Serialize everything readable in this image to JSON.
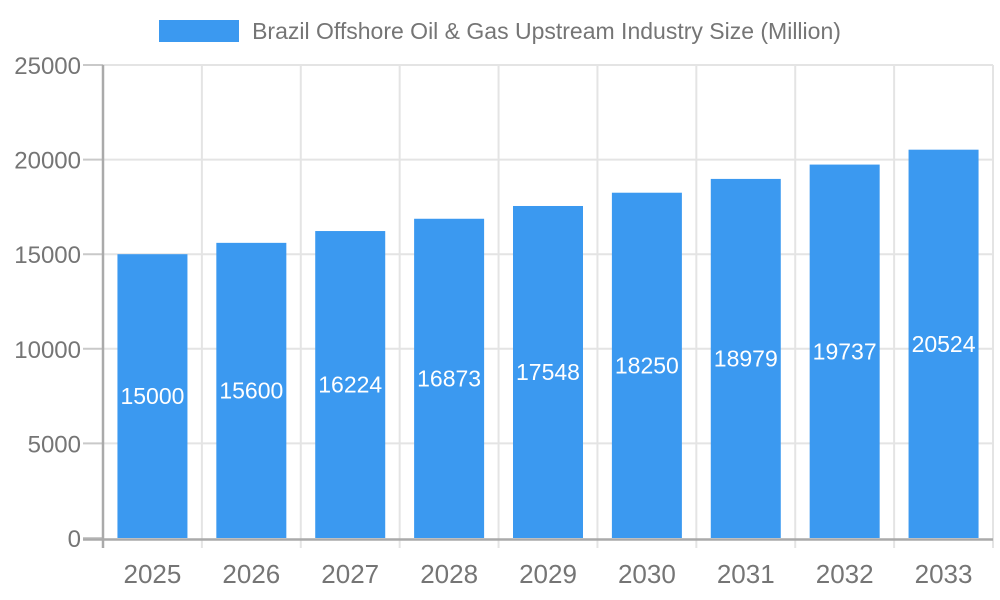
{
  "chart_data": {
    "type": "bar",
    "title": "Brazil Offshore Oil & Gas Upstream Industry Size (Million)",
    "legend_label": "Brazil Offshore Oil & Gas Upstream Industry Size (Million)",
    "legend_position": "top",
    "categories": [
      "2025",
      "2026",
      "2027",
      "2028",
      "2029",
      "2030",
      "2031",
      "2032",
      "2033"
    ],
    "values": [
      15000,
      15600,
      16224,
      16873,
      17548,
      18250,
      18979,
      19737,
      20524
    ],
    "value_labels": [
      "15000",
      "15600",
      "16224",
      "16873",
      "17548",
      "18250",
      "18979",
      "19737",
      "20524"
    ],
    "xlabel": "",
    "ylabel": "",
    "ylim": [
      0,
      25000
    ],
    "yticks": [
      0,
      5000,
      10000,
      15000,
      20000,
      25000
    ],
    "ytick_labels": [
      "0",
      "5000",
      "10000",
      "15000",
      "20000",
      "25000"
    ],
    "grid": true,
    "colors": {
      "bar": "#3B99F0",
      "value_label": "#FFFFFF",
      "axis_text": "#757575",
      "gridline": "#E4E4E4",
      "tick": "#C9C9C9",
      "axis_line": "#AAAAAA",
      "background": "#FFFFFF"
    }
  }
}
